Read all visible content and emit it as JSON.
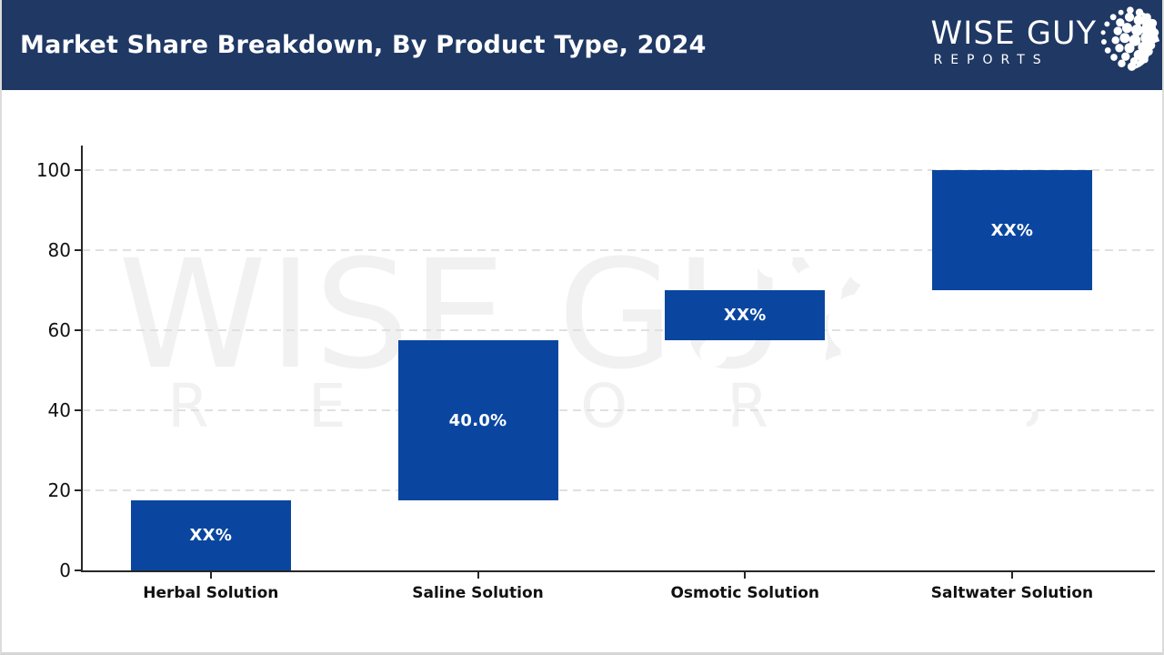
{
  "header": {
    "title": "Market Share Breakdown, By Product Type, 2024",
    "logo": {
      "name": "WISE GUY",
      "sub": "REPORTS"
    }
  },
  "watermark": {
    "line1": "WISE GUY",
    "line2": "R E P O R T S"
  },
  "chart_data": {
    "type": "bar",
    "subtype": "waterfall-floating-bars",
    "title": "Market Share Breakdown, By Product Type, 2024",
    "categories": [
      "Herbal Solution",
      "Saline Solution",
      "Osmotic Solution",
      "Saltwater Solution"
    ],
    "bars": [
      {
        "category": "Herbal Solution",
        "start": 0,
        "end": 17.5,
        "value": 17.5,
        "label": "XX%"
      },
      {
        "category": "Saline Solution",
        "start": 17.5,
        "end": 57.5,
        "value": 40.0,
        "label": "40.0%"
      },
      {
        "category": "Osmotic Solution",
        "start": 57.5,
        "end": 70.0,
        "value": 12.5,
        "label": "XX%"
      },
      {
        "category": "Saltwater Solution",
        "start": 70.0,
        "end": 100.0,
        "value": 30.0,
        "label": "XX%"
      }
    ],
    "xlabel": "",
    "ylabel": "",
    "yticks": [
      0,
      20,
      40,
      60,
      80,
      100
    ],
    "ylim": [
      0,
      106
    ],
    "grid": "horizontal-dashed",
    "legend": "none",
    "bar_color": "#0a46a0",
    "bar_label_color": "#ffffff",
    "grid_color": "#e0e0e0",
    "axis_color": "#262626"
  },
  "colors": {
    "header_bg": "#1f3864",
    "bar": "#0a46a0",
    "watermark": "#f1f1f1",
    "page_border": "#dcdcdc"
  }
}
